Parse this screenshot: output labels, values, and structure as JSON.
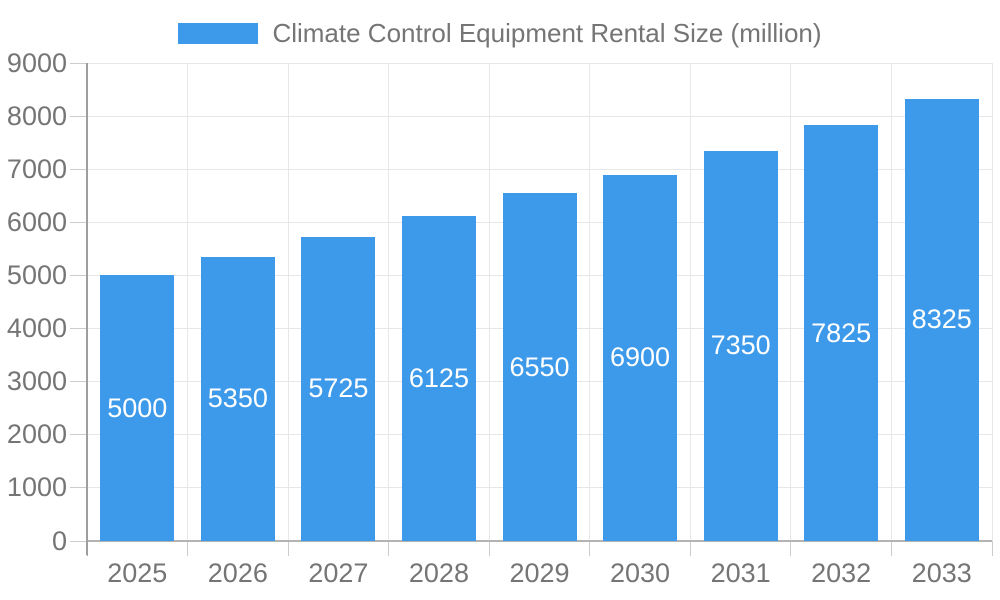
{
  "chart_data": {
    "type": "bar",
    "title": "Climate Control Equipment Rental Size (million)",
    "categories": [
      "2025",
      "2026",
      "2027",
      "2028",
      "2029",
      "2030",
      "2031",
      "2032",
      "2033"
    ],
    "values": [
      5000,
      5350,
      5725,
      6125,
      6550,
      6900,
      7350,
      7825,
      8325
    ],
    "xlabel": "",
    "ylabel": "",
    "ylim": [
      0,
      9000
    ],
    "ytick_step": 1000,
    "legend_position": "top",
    "grid": true,
    "colors": {
      "bar": "#3D9AEA",
      "bar_label_text": "#FFFFFF",
      "axis_text": "#757575",
      "gridline": "#E7E7E7",
      "tick": "#CCCCCC",
      "baseline": "#B3B3B3",
      "yaxis_line": "#9E9E9E"
    }
  }
}
